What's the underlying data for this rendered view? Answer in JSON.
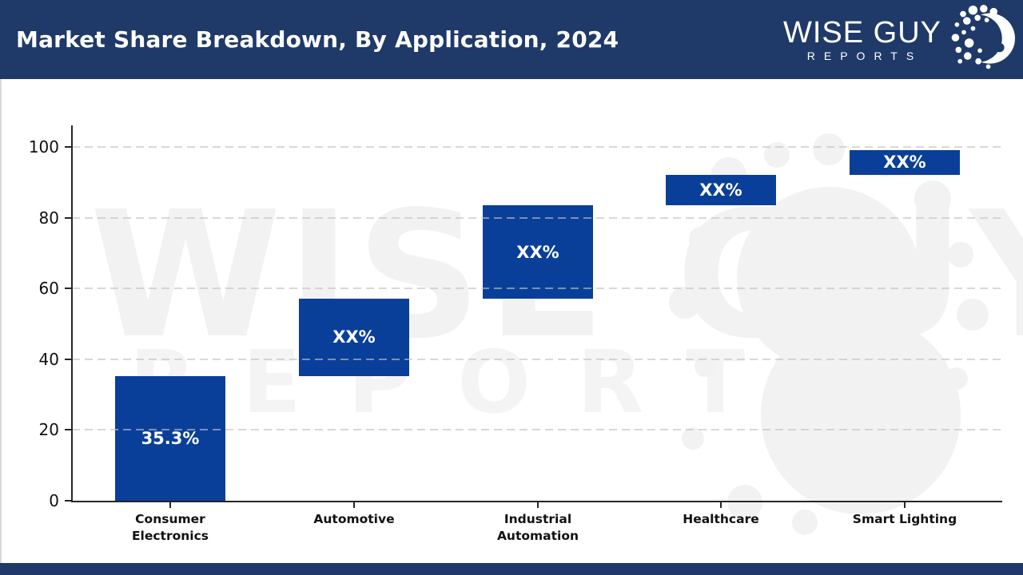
{
  "header": {
    "title": "Market Share Breakdown, By Application, 2024",
    "logo": {
      "line1": "WISE GUY",
      "line2": "REPORTS"
    }
  },
  "watermark": {
    "line1": "WISE GUY",
    "line2": "REPORTS"
  },
  "colors": {
    "header_bg": "#1f3a68",
    "footer_bg": "#1f3a68",
    "bar": "#0a3f99",
    "bar_label": "#ffffff",
    "axis": "#262626",
    "gridline": "#dcdcdc"
  },
  "chart_data": {
    "type": "bar",
    "subtype": "waterfall-cumulative",
    "title": "Market Share Breakdown, By Application, 2024",
    "xlabel": "",
    "ylabel": "",
    "ylim": [
      0,
      105
    ],
    "yticks": [
      0,
      20,
      40,
      60,
      80,
      100
    ],
    "grid": "dashed-horizontal",
    "legend": "none",
    "categories": [
      "Consumer Electronics",
      "Automotive",
      "Industrial Automation",
      "Healthcare",
      "Smart Lighting"
    ],
    "category_label_lines": [
      [
        "Consumer",
        "Electronics"
      ],
      [
        "Automotive"
      ],
      [
        "Industrial",
        "Automation"
      ],
      [
        "Healthcare"
      ],
      [
        "Smart Lighting"
      ]
    ],
    "segments": [
      {
        "category": "Consumer Electronics",
        "start": 0,
        "end": 35.3,
        "label": "35.3%"
      },
      {
        "category": "Automotive",
        "start": 35.3,
        "end": 57.1,
        "label": "XX%"
      },
      {
        "category": "Industrial Automation",
        "start": 57.1,
        "end": 83.5,
        "label": "XX%"
      },
      {
        "category": "Healthcare",
        "start": 83.5,
        "end": 92.1,
        "label": "XX%"
      },
      {
        "category": "Smart Lighting",
        "start": 92.1,
        "end": 99.1,
        "label": "XX%"
      }
    ]
  }
}
